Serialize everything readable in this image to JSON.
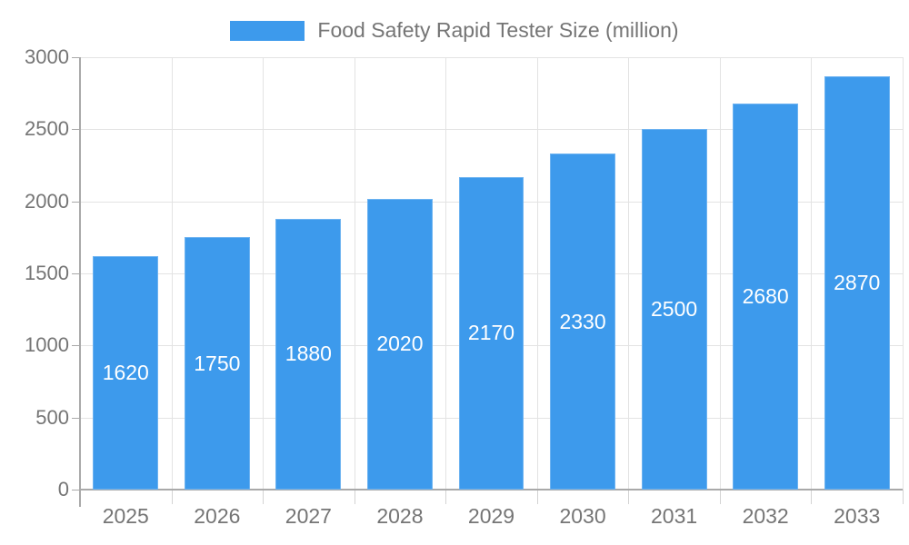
{
  "chart_data": {
    "type": "bar",
    "title": "Food Safety Rapid Tester Size (million)",
    "categories": [
      "2025",
      "2026",
      "2027",
      "2028",
      "2029",
      "2030",
      "2031",
      "2032",
      "2033"
    ],
    "values": [
      1620,
      1750,
      1880,
      2020,
      2170,
      2330,
      2500,
      2680,
      2870
    ],
    "xlabel": "",
    "ylabel": "",
    "ylim": [
      0,
      3000
    ],
    "ytick_step": 500,
    "grid": true,
    "legend_position": "top-center",
    "bar_value_labels": "inside-center",
    "colors": {
      "bar": "#3D9AEC",
      "bar_label": "#FFFFFF",
      "grid": "#E3E3E3",
      "axis": "#A9A9A9",
      "x_tick": "#D3D3D3",
      "text": "#757575"
    }
  }
}
